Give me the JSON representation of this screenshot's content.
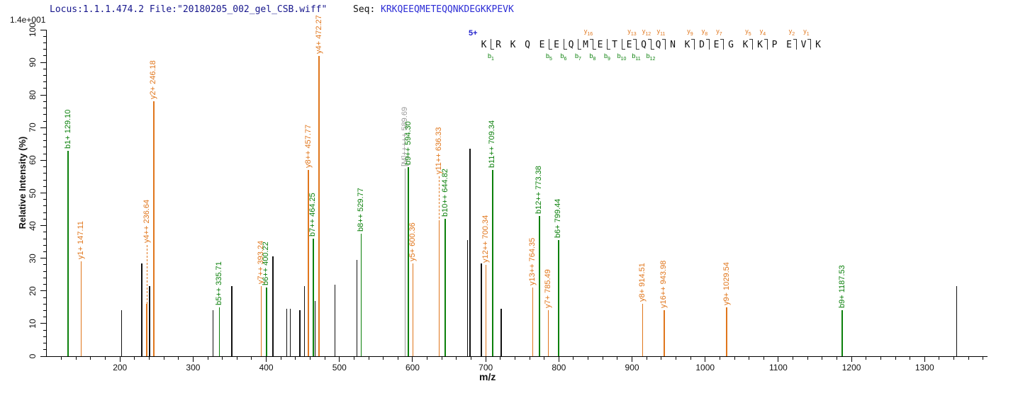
{
  "header": {
    "locus_file": "Locus:1.1.1.474.2 File:\"20180205_002_gel_CSB.wiff\"",
    "seq_label": "Seq:",
    "sequence": "KRKQEEQMETEQQNKDEGKKPEVK",
    "scale_factor": "1.4e+001"
  },
  "precursor": {
    "charge_label": "5+"
  },
  "sequence_diagram": {
    "residues": "KRKQEEQMETEQQNKDEGKKPEVK",
    "cuts": [
      {
        "after": 1,
        "b": "b1"
      },
      {
        "after": 5,
        "b": "b5"
      },
      {
        "after": 6,
        "b": "b6"
      },
      {
        "after": 7,
        "b": "b7"
      },
      {
        "after": 8,
        "b": "b8",
        "y": "y16"
      },
      {
        "after": 9,
        "b": "b9"
      },
      {
        "after": 10,
        "b": "b10"
      },
      {
        "after": 11,
        "b": "b11",
        "y": "y13"
      },
      {
        "after": 12,
        "b": "b12",
        "y": "y12"
      },
      {
        "after": 13,
        "y": "y11"
      },
      {
        "after": 15,
        "y": "y9"
      },
      {
        "after": 16,
        "y": "y8"
      },
      {
        "after": 17,
        "y": "y7"
      },
      {
        "after": 19,
        "y": "y5"
      },
      {
        "after": 20,
        "y": "y4"
      },
      {
        "after": 22,
        "y": "y2"
      },
      {
        "after": 23,
        "y": "y1"
      }
    ]
  },
  "colors": {
    "b_ion": "#0b800b",
    "y_ion": "#e0761c",
    "unassigned": "#111111",
    "precursor": "#9b9b9b",
    "header_file": "#16168c",
    "header_sequence": "#2d2dd6",
    "charge": "#2222cc"
  },
  "chart_data": {
    "type": "bar",
    "title": "",
    "xlabel": "m/z",
    "ylabel": "Relative  Intensity (%)",
    "xlim": [
      99,
      1385
    ],
    "ylim": [
      0,
      100
    ],
    "x_major_ticks": [
      200,
      300,
      400,
      500,
      600,
      700,
      800,
      900,
      1000,
      1100,
      1200,
      1300
    ],
    "x_minor_step": 20,
    "y_major_step": 10,
    "y_minor_step": 2,
    "grid": false,
    "peaks": [
      {
        "mz": 129.1,
        "intensity": 63,
        "ion": "b",
        "label": "b1+ 129.10"
      },
      {
        "mz": 147.11,
        "intensity": 29,
        "ion": "y",
        "label": "y1+ 147.11"
      },
      {
        "mz": 202,
        "intensity": 14,
        "ion": null
      },
      {
        "mz": 230,
        "intensity": 28.5,
        "ion": null
      },
      {
        "mz": 236.64,
        "intensity": 16,
        "ion": "y",
        "label": "y4++ 236.64",
        "dashed": true,
        "label_anchor": 34
      },
      {
        "mz": 240.5,
        "intensity": 21.5,
        "ion": null
      },
      {
        "mz": 246.18,
        "intensity": 78,
        "ion": "y",
        "label": "y2+ 246.18"
      },
      {
        "mz": 327,
        "intensity": 14,
        "ion": null
      },
      {
        "mz": 335.71,
        "intensity": 15,
        "ion": "b",
        "label": "b5++ 335.71"
      },
      {
        "mz": 353,
        "intensity": 21.5,
        "ion": null
      },
      {
        "mz": 393.24,
        "intensity": 21.5,
        "ion": "y",
        "label": "y7++ 393.24"
      },
      {
        "mz": 400.22,
        "intensity": 21,
        "ion": "b",
        "label": "b6++ 400.22"
      },
      {
        "mz": 409,
        "intensity": 30.5,
        "ion": null
      },
      {
        "mz": 428,
        "intensity": 14.5,
        "ion": null
      },
      {
        "mz": 433,
        "intensity": 14.5,
        "ion": null
      },
      {
        "mz": 446,
        "intensity": 14,
        "ion": null
      },
      {
        "mz": 452,
        "intensity": 21.5,
        "ion": null
      },
      {
        "mz": 457.77,
        "intensity": 57,
        "ion": "y",
        "label": "y8++ 457.77"
      },
      {
        "mz": 464.25,
        "intensity": 36,
        "ion": "b",
        "label": "b7++ 464.25"
      },
      {
        "mz": 467,
        "intensity": 17,
        "ion": null
      },
      {
        "mz": 472.27,
        "intensity": 92,
        "ion": "y",
        "label": "y4+ 472.27"
      },
      {
        "mz": 494,
        "intensity": 22,
        "ion": null
      },
      {
        "mz": 524,
        "intensity": 29.5,
        "ion": null
      },
      {
        "mz": 529.77,
        "intensity": 37.5,
        "ion": "b",
        "label": "b8++ 529.77"
      },
      {
        "mz": 589.69,
        "intensity": 57.5,
        "ion": "precursor",
        "label": "[M]+++++ 589.69"
      },
      {
        "mz": 594.3,
        "intensity": 58,
        "ion": "b",
        "label": "b9++ 594.30"
      },
      {
        "mz": 600.36,
        "intensity": 28.5,
        "ion": "y",
        "label": "y5+ 600.36"
      },
      {
        "mz": 636.33,
        "intensity": 41,
        "ion": "y",
        "label": "y11++ 636.33",
        "dashed": true,
        "label_anchor": 55
      },
      {
        "mz": 644.82,
        "intensity": 42,
        "ion": "b",
        "label": "b10++ 644.82"
      },
      {
        "mz": 675,
        "intensity": 35.5,
        "ion": null
      },
      {
        "mz": 678.5,
        "intensity": 63.5,
        "ion": null
      },
      {
        "mz": 694,
        "intensity": 28.5,
        "ion": null
      },
      {
        "mz": 700.34,
        "intensity": 28,
        "ion": "y",
        "label": "y12++ 700.34"
      },
      {
        "mz": 709.34,
        "intensity": 57,
        "ion": "b",
        "label": "b11++ 709.34"
      },
      {
        "mz": 721,
        "intensity": 14.5,
        "ion": null
      },
      {
        "mz": 764.35,
        "intensity": 21,
        "ion": "y",
        "label": "y13++ 764.35"
      },
      {
        "mz": 773.38,
        "intensity": 43,
        "ion": "b",
        "label": "b12++ 773.38"
      },
      {
        "mz": 785.49,
        "intensity": 14,
        "ion": "y",
        "label": "y7+ 785.49"
      },
      {
        "mz": 799.44,
        "intensity": 35.5,
        "ion": "b",
        "label": "b6+ 799.44"
      },
      {
        "mz": 914.51,
        "intensity": 16,
        "ion": "y",
        "label": "y8+ 914.51"
      },
      {
        "mz": 943.98,
        "intensity": 14,
        "ion": "y",
        "label": "y16++ 943.98"
      },
      {
        "mz": 1029.54,
        "intensity": 15,
        "ion": "y",
        "label": "y9+ 1029.54"
      },
      {
        "mz": 1187.53,
        "intensity": 14,
        "ion": "b",
        "label": "b9+ 1187.53"
      },
      {
        "mz": 1344,
        "intensity": 21.5,
        "ion": null
      }
    ]
  }
}
